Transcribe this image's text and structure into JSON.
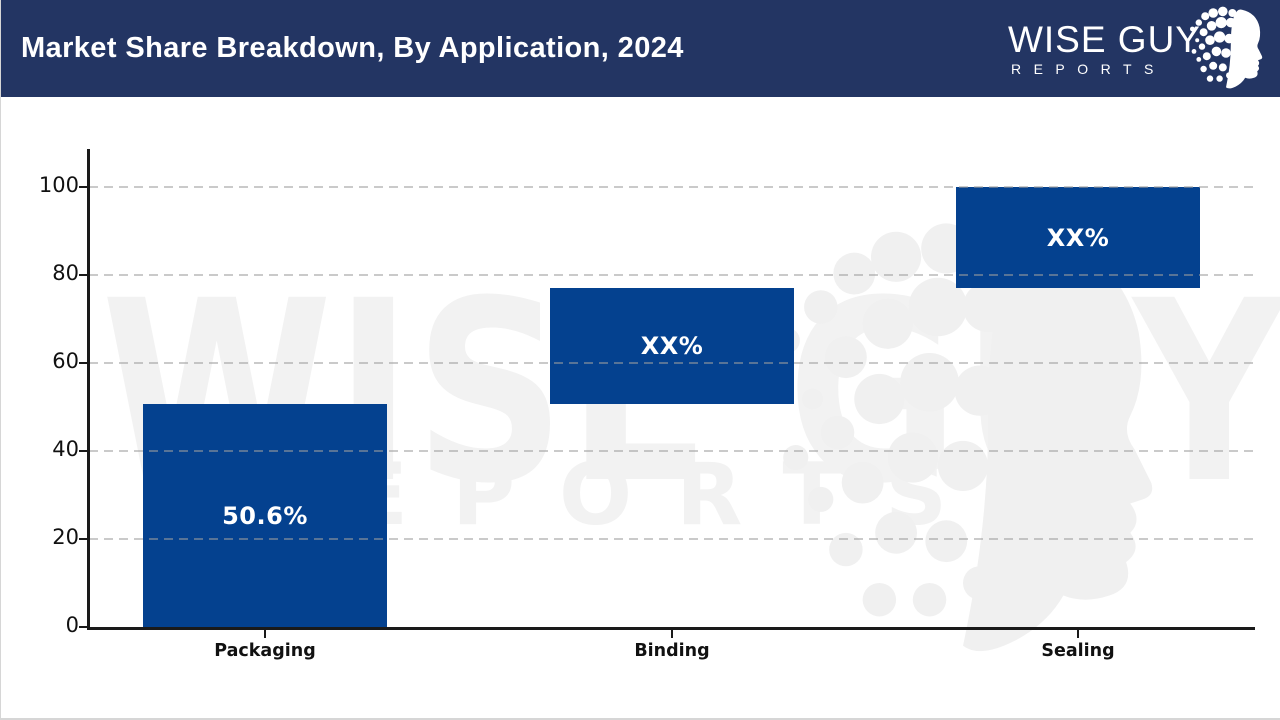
{
  "header": {
    "title": "Market Share Breakdown, By Application, 2024",
    "logo": {
      "line1": "WISE GUY",
      "line2": "REPORTS"
    }
  },
  "watermark": {
    "line1": "WISE GUY",
    "line2": "REPORTS"
  },
  "chart_data": {
    "type": "bar",
    "subtype": "floating-waterfall",
    "title": "Market Share Breakdown, By Application, 2024",
    "categories": [
      "Packaging",
      "Binding",
      "Sealing"
    ],
    "bars": [
      {
        "category": "Packaging",
        "base": 0,
        "top": 50.6,
        "label": "50.6%"
      },
      {
        "category": "Binding",
        "base": 50.6,
        "top": 77,
        "label": "XX%"
      },
      {
        "category": "Sealing",
        "base": 77,
        "top": 100,
        "label": "XX%"
      }
    ],
    "yticks": [
      0,
      20,
      40,
      60,
      80,
      100
    ],
    "ylim": [
      0,
      108
    ],
    "xlabel": "",
    "ylabel": "",
    "grid": "horizontal-dashed",
    "legend": "none",
    "colors": {
      "bar": "#04418f",
      "bar_label": "#ffffff",
      "header_bg": "#233563",
      "axis": "#1a1a1a",
      "grid": "#c9c9c9",
      "watermark": "#f2f2f2"
    }
  }
}
